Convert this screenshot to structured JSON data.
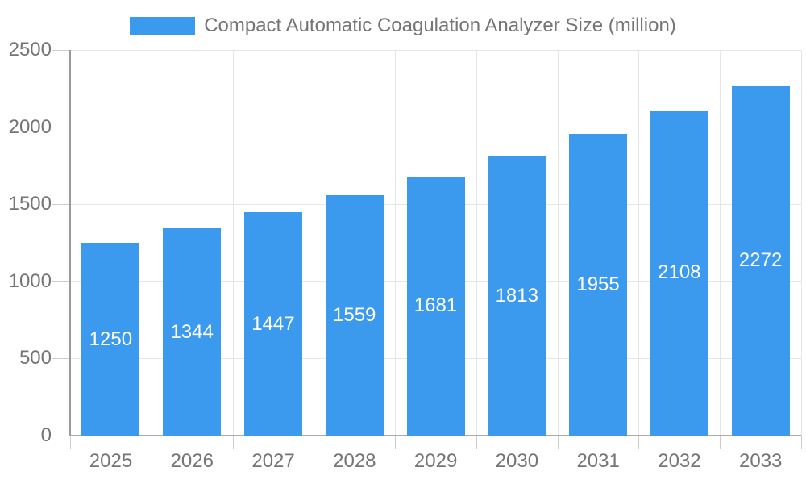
{
  "legend": {
    "label": "Compact Automatic Coagulation Analyzer Size (million)"
  },
  "colors": {
    "bar": "#3b99ee",
    "grid": "#e6e6e6",
    "axis_line_y": "#9a9a9a",
    "axis_line_x": "#aaaaaa",
    "tick": "#cccccc",
    "axis_label": "#757575",
    "bar_label": "#ffffff",
    "background": "#ffffff"
  },
  "chart_data": {
    "type": "bar",
    "title": "",
    "categories": [
      "2025",
      "2026",
      "2027",
      "2028",
      "2029",
      "2030",
      "2031",
      "2032",
      "2033"
    ],
    "series": [
      {
        "name": "Compact Automatic Coagulation Analyzer Size (million)",
        "values": [
          1250,
          1344,
          1447,
          1559,
          1681,
          1813,
          1955,
          2108,
          2272
        ]
      }
    ],
    "bar_value_labels": [
      "1250",
      "1344",
      "1447",
      "1559",
      "1681",
      "1813",
      "1955",
      "2108",
      "2272"
    ],
    "xlabel": "",
    "ylabel": "",
    "ylim": [
      0,
      2500
    ],
    "yticks": [
      0,
      500,
      1000,
      1500,
      2000,
      2500
    ],
    "ytick_labels": [
      "0",
      "500",
      "1000",
      "1500",
      "2000",
      "2500"
    ],
    "grid": true,
    "legend_position": "top",
    "bar_label_position": "inside-center"
  }
}
